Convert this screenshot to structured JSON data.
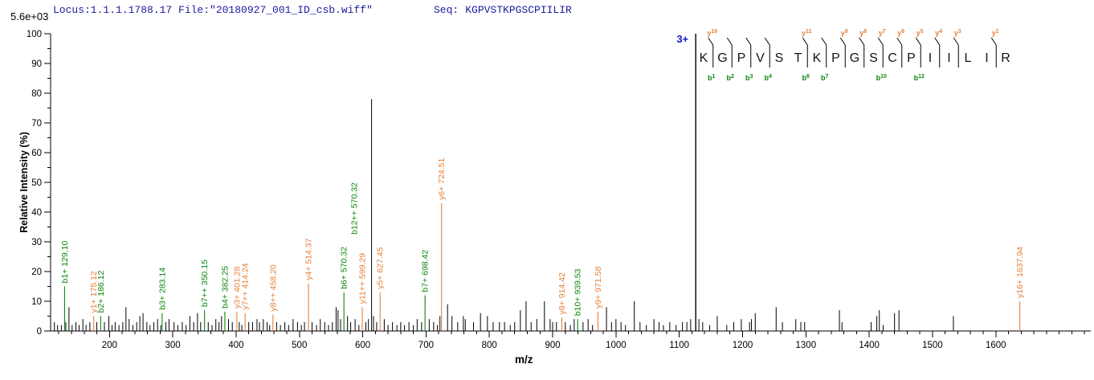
{
  "header": {
    "locus_file": "Locus:1.1.1.1788.17 File:\"20180927_001_ID_csb.wiff\"",
    "seq_label": "Seq:",
    "sequence": "KGPVSTKPGSCPIILIR"
  },
  "colors": {
    "b_ion": "#0a870a",
    "y_ion": "#e6813b",
    "peak": "#000000",
    "axis": "#000000",
    "header_text": "#1b1b9e",
    "charge_label": "#1414cc",
    "residue": "#141414"
  },
  "chart_data": {
    "type": "bar",
    "subtype": "ms2-fragment-ion-spectrum",
    "title": "",
    "xlabel": "m/z",
    "ylabel": "Relative Intensity (%)",
    "intensity_scale": "5.6e+03",
    "xlim": [
      107,
      1750
    ],
    "ylim": [
      0,
      100
    ],
    "x_ticks": [
      200,
      300,
      400,
      500,
      600,
      700,
      800,
      900,
      1000,
      1100,
      1200,
      1300,
      1400,
      1500,
      1600
    ],
    "x_minor_step": 20,
    "y_ticks": [
      0,
      10,
      20,
      30,
      40,
      50,
      60,
      70,
      80,
      90,
      100
    ],
    "y_minor_step": 5,
    "grid": false,
    "legend": false,
    "precursor": {
      "mz": 1126,
      "intensity": 100,
      "charge_label": "3+"
    },
    "labeled_peaks": [
      {
        "label": "b1+ 129.10",
        "ion": "b",
        "mz": 129.1,
        "intensity": 15
      },
      {
        "label": "y1+ 175.12",
        "ion": "y",
        "mz": 175.12,
        "intensity": 5
      },
      {
        "label": "b2+ 186.12",
        "ion": "b",
        "mz": 186.12,
        "intensity": 5
      },
      {
        "label": "b3+ 283.14",
        "ion": "b",
        "mz": 283.14,
        "intensity": 6
      },
      {
        "label": "b7++ 350.15",
        "ion": "b",
        "mz": 350.15,
        "intensity": 7
      },
      {
        "label": "b4+ 382.25",
        "ion": "b",
        "mz": 382.25,
        "intensity": 6.5
      },
      {
        "label": "y3+ 401.28",
        "ion": "y",
        "mz": 401.28,
        "intensity": 6.5
      },
      {
        "label": "y7++ 414.24",
        "ion": "y",
        "mz": 414.24,
        "intensity": 6
      },
      {
        "label": "y8++ 458.20",
        "ion": "y",
        "mz": 458.2,
        "intensity": 5.5
      },
      {
        "label": "y4+ 514.37",
        "ion": "y",
        "mz": 514.37,
        "intensity": 16
      },
      {
        "label": "b6+ 570.32",
        "ion": "b",
        "mz": 570.32,
        "intensity": 13
      },
      {
        "label": "b12++ 570.32",
        "ion": "b",
        "mz": 570.32,
        "intensity": 13,
        "draw_peak": false,
        "label_offset": [
          13,
          -68
        ]
      },
      {
        "label": "y11++ 599.29",
        "ion": "y",
        "mz": 599.29,
        "intensity": 8
      },
      {
        "label": "y5+ 627.45",
        "ion": "y",
        "mz": 627.45,
        "intensity": 13
      },
      {
        "label": "b7+ 698.42",
        "ion": "b",
        "mz": 698.42,
        "intensity": 12
      },
      {
        "label": "y6+ 724.51",
        "ion": "y",
        "mz": 724.51,
        "intensity": 43
      },
      {
        "label": "y8+ 914.42",
        "ion": "y",
        "mz": 914.42,
        "intensity": 4.5
      },
      {
        "label": "b10+ 939.53",
        "ion": "b",
        "mz": 939.53,
        "intensity": 4
      },
      {
        "label": "y9+ 971.58",
        "ion": "y",
        "mz": 971.58,
        "intensity": 6.5
      },
      {
        "label": "y16+ 1637.94",
        "ion": "y",
        "mz": 1637.94,
        "intensity": 10
      }
    ],
    "background_peaks": [
      [
        113,
        3
      ],
      [
        118,
        2
      ],
      [
        124,
        2
      ],
      [
        131,
        3
      ],
      [
        136,
        8
      ],
      [
        141,
        2
      ],
      [
        147,
        3
      ],
      [
        152,
        2
      ],
      [
        158,
        4
      ],
      [
        163,
        2
      ],
      [
        169,
        3
      ],
      [
        180,
        3
      ],
      [
        192,
        3
      ],
      [
        199,
        5
      ],
      [
        204,
        2
      ],
      [
        209,
        3
      ],
      [
        215,
        2
      ],
      [
        221,
        3
      ],
      [
        226,
        8
      ],
      [
        231,
        4
      ],
      [
        237,
        2
      ],
      [
        243,
        3
      ],
      [
        248,
        5
      ],
      [
        253,
        6
      ],
      [
        259,
        3
      ],
      [
        264,
        2
      ],
      [
        270,
        3
      ],
      [
        276,
        4
      ],
      [
        281,
        2
      ],
      [
        289,
        3
      ],
      [
        294,
        4
      ],
      [
        302,
        3
      ],
      [
        308,
        2
      ],
      [
        315,
        3
      ],
      [
        321,
        2
      ],
      [
        327,
        5
      ],
      [
        333,
        3
      ],
      [
        339,
        6
      ],
      [
        344,
        3
      ],
      [
        356,
        3
      ],
      [
        362,
        2
      ],
      [
        368,
        4
      ],
      [
        373,
        3
      ],
      [
        377,
        5
      ],
      [
        388,
        4
      ],
      [
        394,
        3
      ],
      [
        405,
        3
      ],
      [
        409,
        2
      ],
      [
        420,
        3
      ],
      [
        426,
        3
      ],
      [
        433,
        4
      ],
      [
        437,
        3
      ],
      [
        443,
        4
      ],
      [
        449,
        3
      ],
      [
        453,
        2
      ],
      [
        464,
        3
      ],
      [
        470,
        2
      ],
      [
        477,
        3
      ],
      [
        483,
        2
      ],
      [
        490,
        4
      ],
      [
        497,
        3
      ],
      [
        503,
        2
      ],
      [
        508,
        3
      ],
      [
        520,
        3
      ],
      [
        527,
        2
      ],
      [
        533,
        4
      ],
      [
        540,
        3
      ],
      [
        546,
        2
      ],
      [
        552,
        3
      ],
      [
        558,
        8
      ],
      [
        561,
        7
      ],
      [
        565,
        4
      ],
      [
        576,
        5
      ],
      [
        581,
        3
      ],
      [
        588,
        4
      ],
      [
        594,
        2
      ],
      [
        605,
        3
      ],
      [
        609,
        4
      ],
      [
        614,
        78
      ],
      [
        617,
        5
      ],
      [
        622,
        3
      ],
      [
        634,
        4
      ],
      [
        640,
        2
      ],
      [
        647,
        3
      ],
      [
        654,
        2
      ],
      [
        660,
        3
      ],
      [
        666,
        2
      ],
      [
        673,
        3
      ],
      [
        680,
        2
      ],
      [
        686,
        4
      ],
      [
        693,
        3
      ],
      [
        705,
        4
      ],
      [
        712,
        3
      ],
      [
        718,
        2
      ],
      [
        722,
        5
      ],
      [
        734,
        9
      ],
      [
        741,
        5
      ],
      [
        750,
        3
      ],
      [
        759,
        5
      ],
      [
        762,
        4
      ],
      [
        775,
        3
      ],
      [
        786,
        6
      ],
      [
        797,
        5
      ],
      [
        806,
        3
      ],
      [
        816,
        3
      ],
      [
        824,
        3
      ],
      [
        833,
        2
      ],
      [
        840,
        3
      ],
      [
        849,
        7
      ],
      [
        858,
        10
      ],
      [
        866,
        3
      ],
      [
        875,
        4
      ],
      [
        887,
        10
      ],
      [
        896,
        4
      ],
      [
        900,
        3
      ],
      [
        906,
        3
      ],
      [
        920,
        3
      ],
      [
        928,
        2
      ],
      [
        934,
        4
      ],
      [
        948,
        3
      ],
      [
        956,
        4
      ],
      [
        963,
        2
      ],
      [
        985,
        8
      ],
      [
        993,
        3
      ],
      [
        1000,
        4
      ],
      [
        1008,
        3
      ],
      [
        1015,
        2
      ],
      [
        1029,
        10
      ],
      [
        1038,
        3
      ],
      [
        1048,
        2
      ],
      [
        1060,
        4
      ],
      [
        1068,
        3
      ],
      [
        1075,
        2
      ],
      [
        1085,
        3
      ],
      [
        1095,
        2
      ],
      [
        1105,
        3
      ],
      [
        1112,
        3
      ],
      [
        1118,
        4
      ],
      [
        1131,
        4
      ],
      [
        1137,
        3
      ],
      [
        1148,
        2
      ],
      [
        1160,
        5
      ],
      [
        1175,
        2
      ],
      [
        1186,
        3
      ],
      [
        1198,
        4
      ],
      [
        1211,
        3
      ],
      [
        1214,
        4
      ],
      [
        1220,
        6
      ],
      [
        1253,
        8
      ],
      [
        1263,
        3
      ],
      [
        1284,
        4
      ],
      [
        1292,
        3
      ],
      [
        1298,
        3
      ],
      [
        1353,
        7
      ],
      [
        1357,
        3
      ],
      [
        1403,
        3
      ],
      [
        1412,
        5
      ],
      [
        1416,
        7
      ],
      [
        1422,
        2
      ],
      [
        1440,
        6
      ],
      [
        1447,
        7
      ],
      [
        1533,
        5
      ]
    ]
  },
  "ladder": {
    "residues": [
      "K",
      "G",
      "P",
      "V",
      "S",
      "T",
      "K",
      "P",
      "G",
      "S",
      "C",
      "P",
      "I",
      "I",
      "L",
      "I",
      "R"
    ],
    "cleavages": [
      {
        "after": 0,
        "y": "y16",
        "b": "b1"
      },
      {
        "after": 1,
        "b": "b2"
      },
      {
        "after": 2,
        "b": "b3"
      },
      {
        "after": 3,
        "b": "b4"
      },
      {
        "after": 5,
        "y": "y11",
        "b": "b6"
      },
      {
        "after": 6,
        "b": "b7"
      },
      {
        "after": 7,
        "y": "y9"
      },
      {
        "after": 8,
        "y": "y8"
      },
      {
        "after": 9,
        "y": "y7",
        "b": "b10"
      },
      {
        "after": 10,
        "y": "y6"
      },
      {
        "after": 11,
        "y": "y5",
        "b": "b12"
      },
      {
        "after": 12,
        "y": "y4"
      },
      {
        "after": 13,
        "y": "y3"
      },
      {
        "after": 15,
        "y": "y1"
      }
    ]
  }
}
